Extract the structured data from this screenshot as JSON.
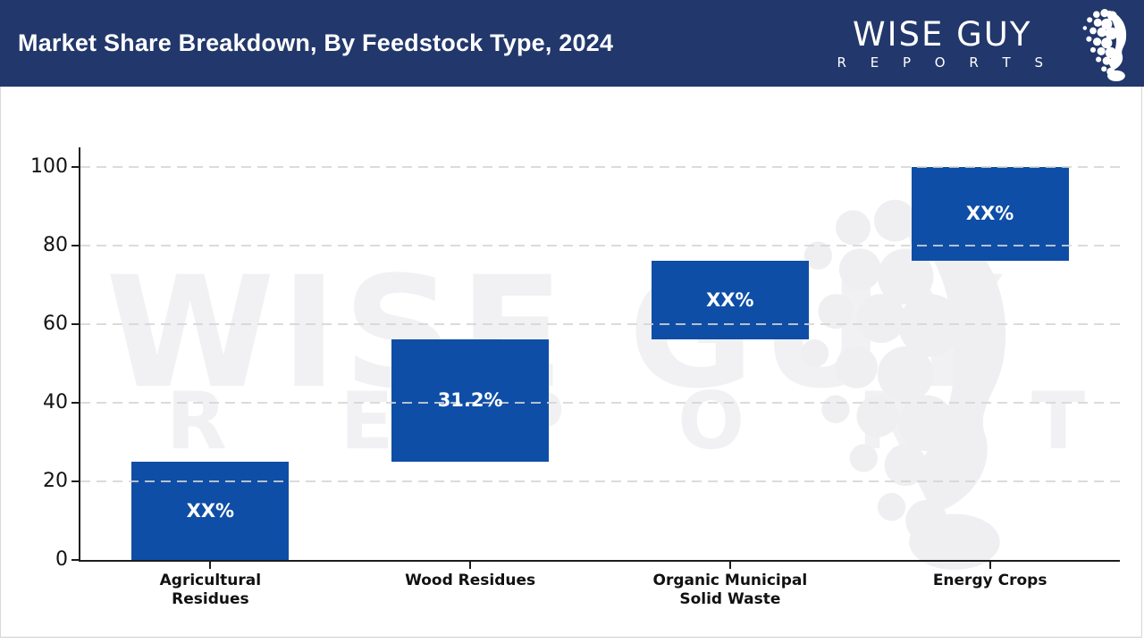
{
  "header": {
    "title": "Market Share Breakdown, By Feedstock Type, 2024",
    "background": "#22376B",
    "logo": {
      "line1": "WISE GUY",
      "line2": "R E P O R T S"
    }
  },
  "watermark": {
    "line1": "WISE GUY",
    "line2": "R E P O R T S"
  },
  "chart_data": {
    "type": "bar",
    "subtype": "waterfall",
    "title": "Market Share Breakdown, By Feedstock Type, 2024",
    "categories": [
      "Agricultural\nResidues",
      "Wood Residues",
      "Organic Municipal\nSolid Waste",
      "Energy Crops"
    ],
    "segments": [
      {
        "category": "Agricultural Residues",
        "start": 0,
        "end": 25,
        "label": "XX%"
      },
      {
        "category": "Wood Residues",
        "start": 25,
        "end": 56.2,
        "label": "31.2%"
      },
      {
        "category": "Organic Municipal Solid Waste",
        "start": 56.2,
        "end": 76.2,
        "label": "XX%"
      },
      {
        "category": "Energy Crops",
        "start": 76.2,
        "end": 100,
        "label": "XX%"
      }
    ],
    "xlabel": "",
    "ylabel": "",
    "ylim": [
      0,
      100
    ],
    "yticks": [
      0,
      20,
      40,
      60,
      80,
      100
    ],
    "bar_color": "#0E4EA6",
    "grid": true,
    "grid_style": "dashed",
    "grid_color": "#D5D5D5",
    "legend": "none"
  }
}
